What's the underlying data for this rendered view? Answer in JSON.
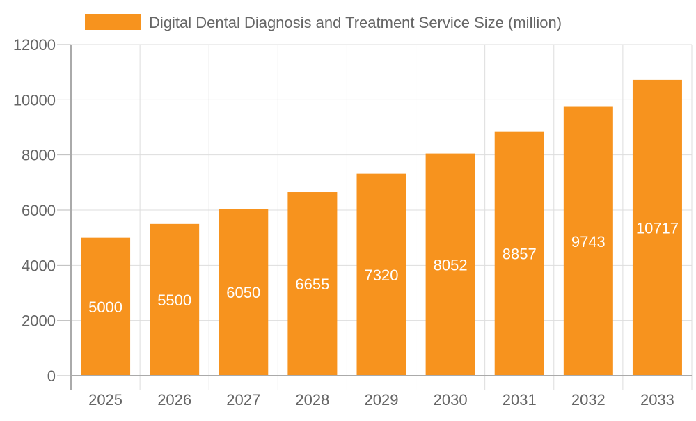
{
  "chart_data": {
    "type": "bar",
    "title": "",
    "xlabel": "",
    "ylabel": "",
    "categories": [
      "2025",
      "2026",
      "2027",
      "2028",
      "2029",
      "2030",
      "2031",
      "2032",
      "2033"
    ],
    "series": [
      {
        "name": "Digital Dental Diagnosis and Treatment Service Size (million)",
        "values": [
          5000,
          5500,
          6050,
          6655,
          7320,
          8052,
          8857,
          9743,
          10717
        ],
        "color": "#f7931e"
      }
    ],
    "ylim": [
      0,
      12000
    ],
    "yticks": [
      0,
      2000,
      4000,
      6000,
      8000,
      10000,
      12000
    ],
    "grid": true,
    "legend": "top",
    "data_labels": true
  }
}
